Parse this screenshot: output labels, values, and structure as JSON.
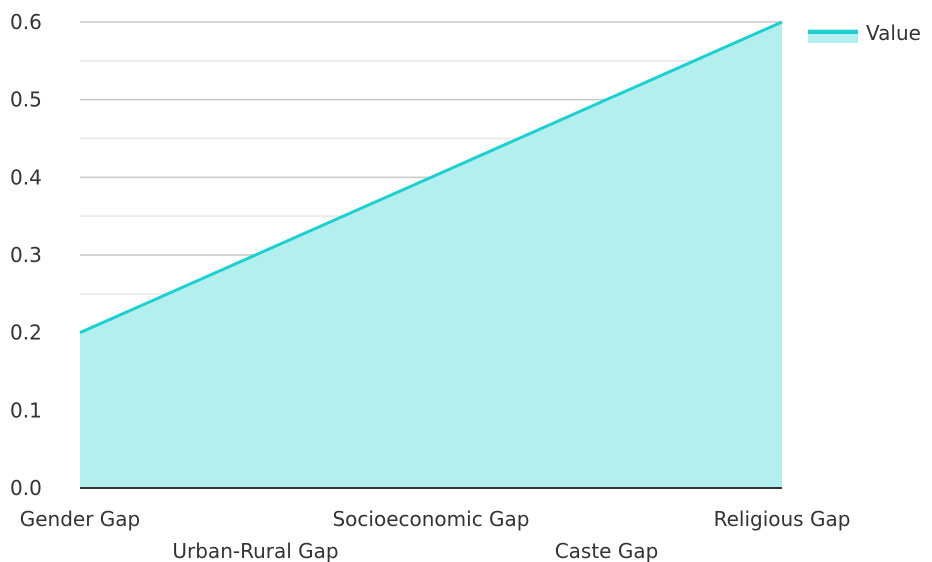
{
  "chart_data": {
    "type": "area",
    "categories": [
      "Gender Gap",
      "Urban-Rural Gap",
      "Socioeconomic Gap",
      "Caste Gap",
      "Religious Gap"
    ],
    "series": [
      {
        "name": "Value",
        "values": [
          0.2,
          0.3,
          0.4,
          0.5,
          0.6
        ]
      }
    ],
    "ylim": [
      0,
      0.6
    ],
    "yticks": [
      "0.0",
      "0.1",
      "0.2",
      "0.3",
      "0.4",
      "0.5",
      "0.6"
    ],
    "grid": true,
    "legend_position": "top-right",
    "colors": {
      "line": "#1fcfcf",
      "fill": "#b2efee",
      "grid_major": "#c8c8c8",
      "grid_minor": "#e8e8e8",
      "axis": "#333333"
    }
  }
}
